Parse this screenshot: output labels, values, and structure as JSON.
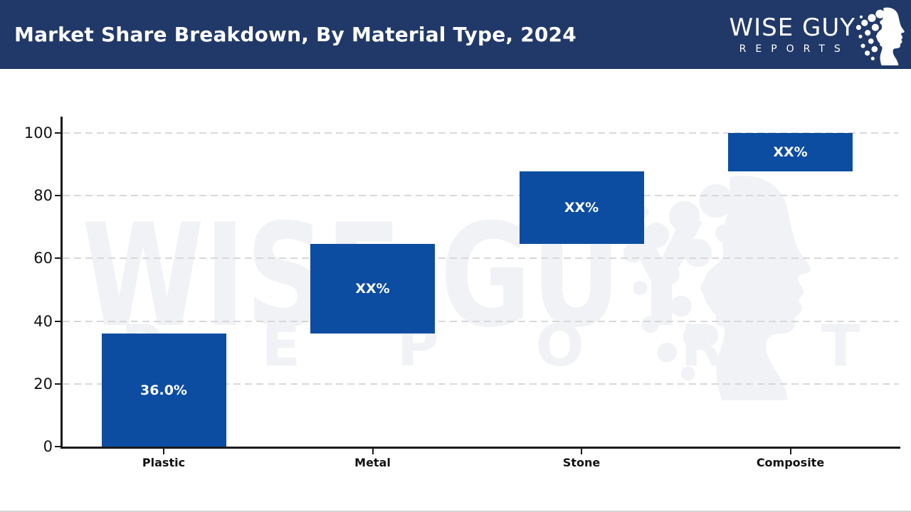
{
  "header": {
    "title": "Market Share Breakdown, By Material Type, 2024",
    "logo": {
      "wordmark": "WISE GUY",
      "subtext": "REPORTS",
      "icon": "head-profile-dots-icon"
    }
  },
  "watermark": {
    "wordmark": "WISE GUY",
    "subtext": "R E P O R T S",
    "icon": "head-profile-dots-icon"
  },
  "colors": {
    "header_bg": "#213968",
    "bar": "#0C4DA2",
    "bar_label": "#FFFFFF",
    "axis": "#1A1A1A",
    "tick_text": "#111111",
    "grid": "#D8D8D8",
    "watermark": "#F1F2F5",
    "bottom_line": "#D4D4D4"
  },
  "chart_data": {
    "type": "bar",
    "subtype": "waterfall",
    "title": "Market Share Breakdown, By Material Type, 2024",
    "categories": [
      "Plastic",
      "Metal",
      "Stone",
      "Composite"
    ],
    "segments": [
      {
        "category": "Plastic",
        "start": 0,
        "end": 36,
        "size": 36.0,
        "label": "36.0%"
      },
      {
        "category": "Metal",
        "start": 36,
        "end": 64.6,
        "size": 28.6,
        "label": "XX%"
      },
      {
        "category": "Stone",
        "start": 64.6,
        "end": 87.8,
        "size": 23.2,
        "label": "XX%"
      },
      {
        "category": "Composite",
        "start": 87.8,
        "end": 100,
        "size": 12.2,
        "label": "XX%"
      }
    ],
    "ylim": [
      0,
      100
    ],
    "yticks": [
      0,
      20,
      40,
      60,
      80,
      100
    ],
    "xlabel": "",
    "ylabel": "",
    "grid": "dashed-horizontal",
    "legend": "none",
    "bar_color": "#0C4DA2",
    "label_color": "#FFFFFF"
  }
}
